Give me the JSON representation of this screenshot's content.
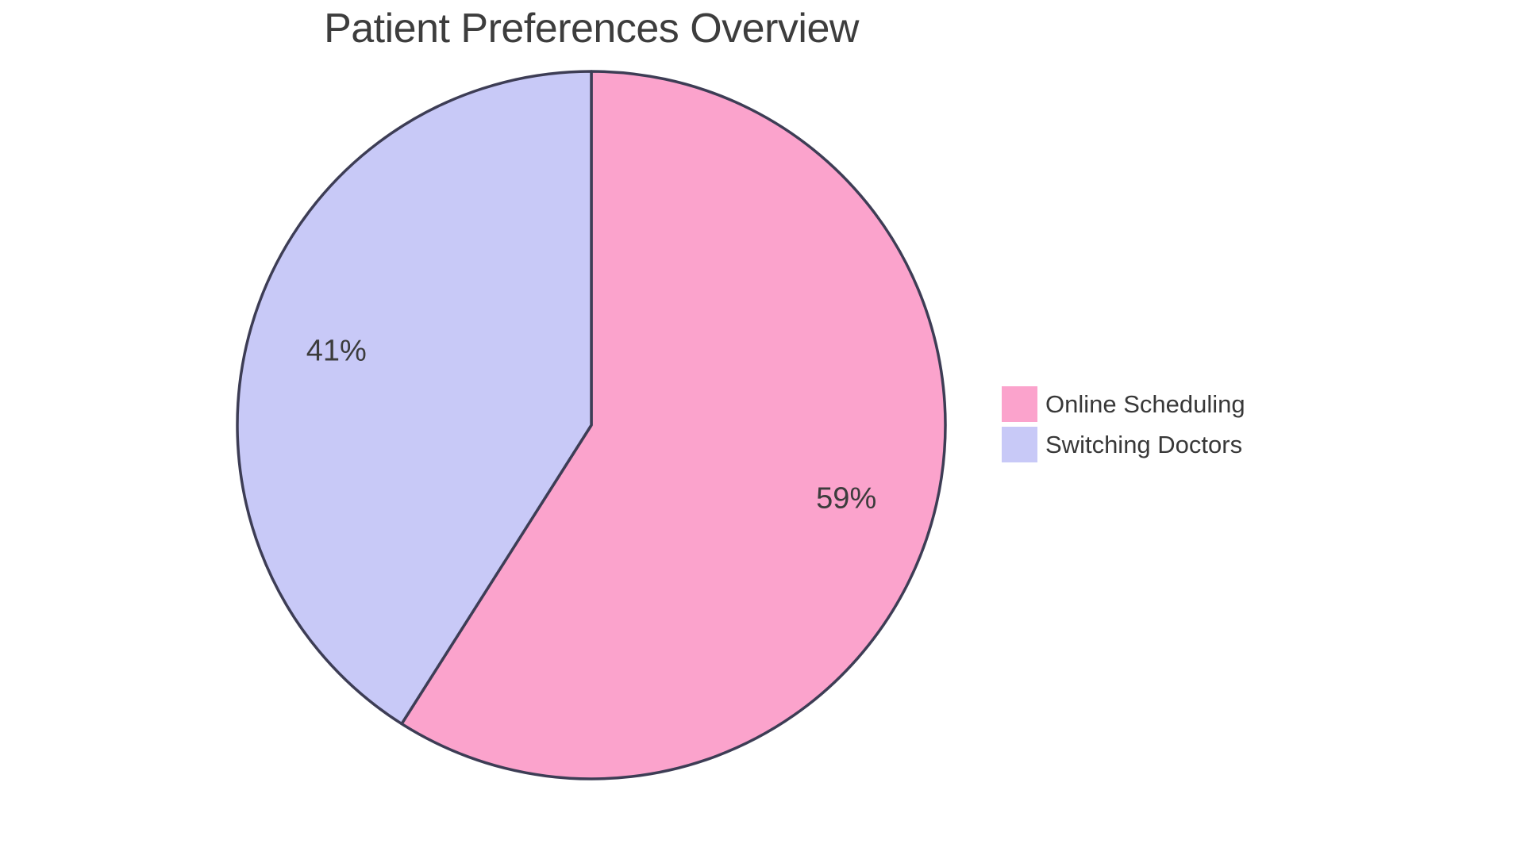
{
  "title": "Patient Preferences Overview",
  "chart_data": {
    "type": "pie",
    "title": "Patient Preferences Overview",
    "labels": [
      "Online Scheduling",
      "Switching Doctors"
    ],
    "values": [
      59,
      41
    ],
    "value_labels": [
      "59%",
      "41%"
    ],
    "colors": [
      "#FBA3CC",
      "#C8C9F7"
    ],
    "stroke_color": "#3D3D55",
    "stroke_width": 3.5,
    "start_angle_deg": 0,
    "direction": "clockwise",
    "label_radius_fraction": 0.75,
    "legend_position": "right",
    "background": "#FFFFFF",
    "text_color": "#3C3C3C"
  },
  "legend": {
    "items": [
      {
        "label": "Online Scheduling",
        "color": "#FBA3CC"
      },
      {
        "label": "Switching Doctors",
        "color": "#C8C9F7"
      }
    ]
  }
}
